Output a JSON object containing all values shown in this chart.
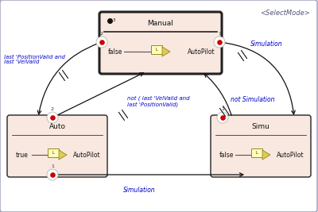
{
  "bg_color": "#efefef",
  "outer_border_color": "#9999bb",
  "state_fill": "#f9e8e0",
  "state_border_dark": "#222222",
  "red_dot_color": "#cc0000",
  "arrow_color": "#111111",
  "label_color": "#0000cc",
  "text_color": "#111111",
  "title": "<SelectMode>",
  "manual_label": "Manual",
  "auto_label": "Auto",
  "simu_label": "Simu",
  "t1_label": "last 'PositionValid and\nlast 'VelValid",
  "t2_label": "Simulation",
  "t3_label": "not Simulation",
  "t4_label": "not ( last 'VelValid and\nlast 'PositionValid)",
  "t5_label": "Simulation"
}
